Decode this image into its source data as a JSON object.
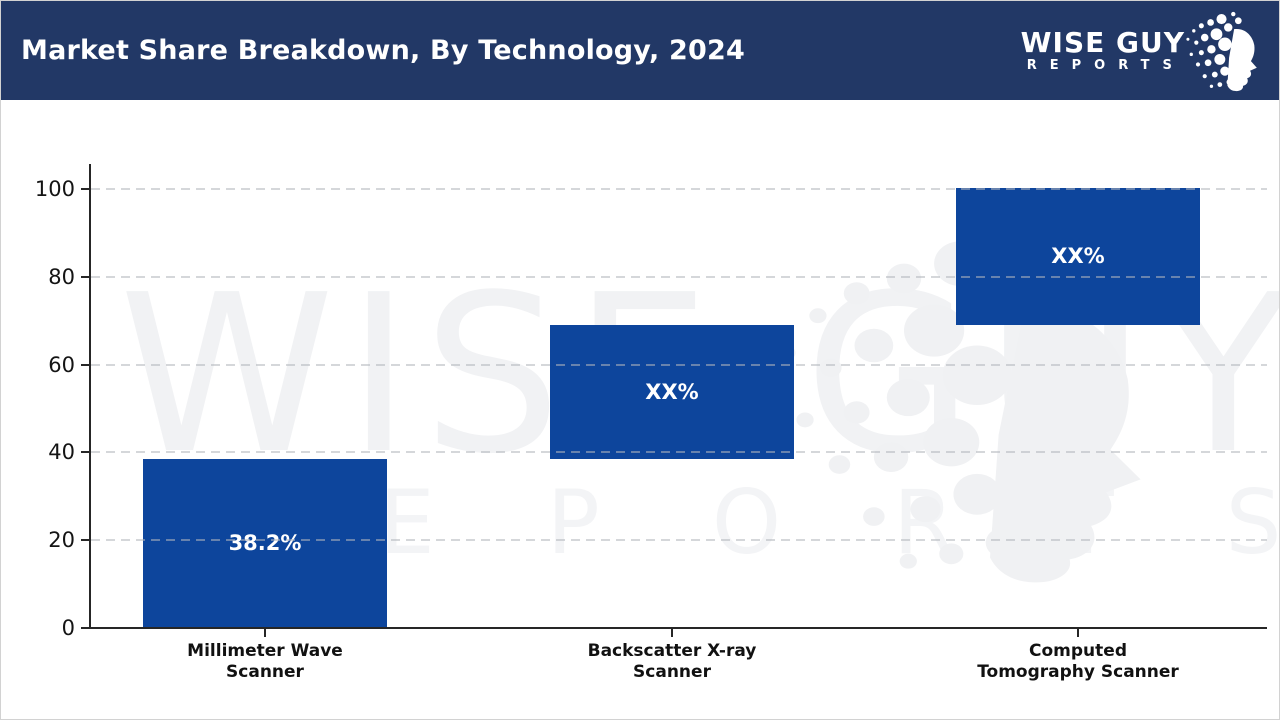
{
  "header": {
    "title": "Market Share Breakdown, By Technology, 2024",
    "logo": {
      "line1": "WISE GUY",
      "line2": "REPORTS"
    }
  },
  "watermark": {
    "line1": "WISE GUY",
    "line2": "REPORTS"
  },
  "chart_data": {
    "type": "bar",
    "subtype": "waterfall",
    "title": "Market Share Breakdown, By Technology, 2024",
    "categories": [
      [
        "Millimeter Wave",
        "Scanner"
      ],
      [
        "Backscatter X-ray",
        "Scanner"
      ],
      [
        "Computed",
        "Tomography Scanner"
      ]
    ],
    "bars": [
      {
        "start": 0,
        "end": 38.2,
        "label": "38.2%"
      },
      {
        "start": 38.2,
        "end": 68.8,
        "label": "XX%"
      },
      {
        "start": 68.8,
        "end": 100,
        "label": "XX%"
      }
    ],
    "yticks": [
      0,
      20,
      40,
      60,
      80,
      100
    ],
    "ylim": [
      0,
      105.5
    ],
    "xlabel": "",
    "ylabel": "",
    "bar_color": "#0D459C",
    "grid": "horizontal-dashed",
    "gridline_color": "#c6cace",
    "legend": "none",
    "header_color": "#223866",
    "label_color": "#ffffff"
  }
}
